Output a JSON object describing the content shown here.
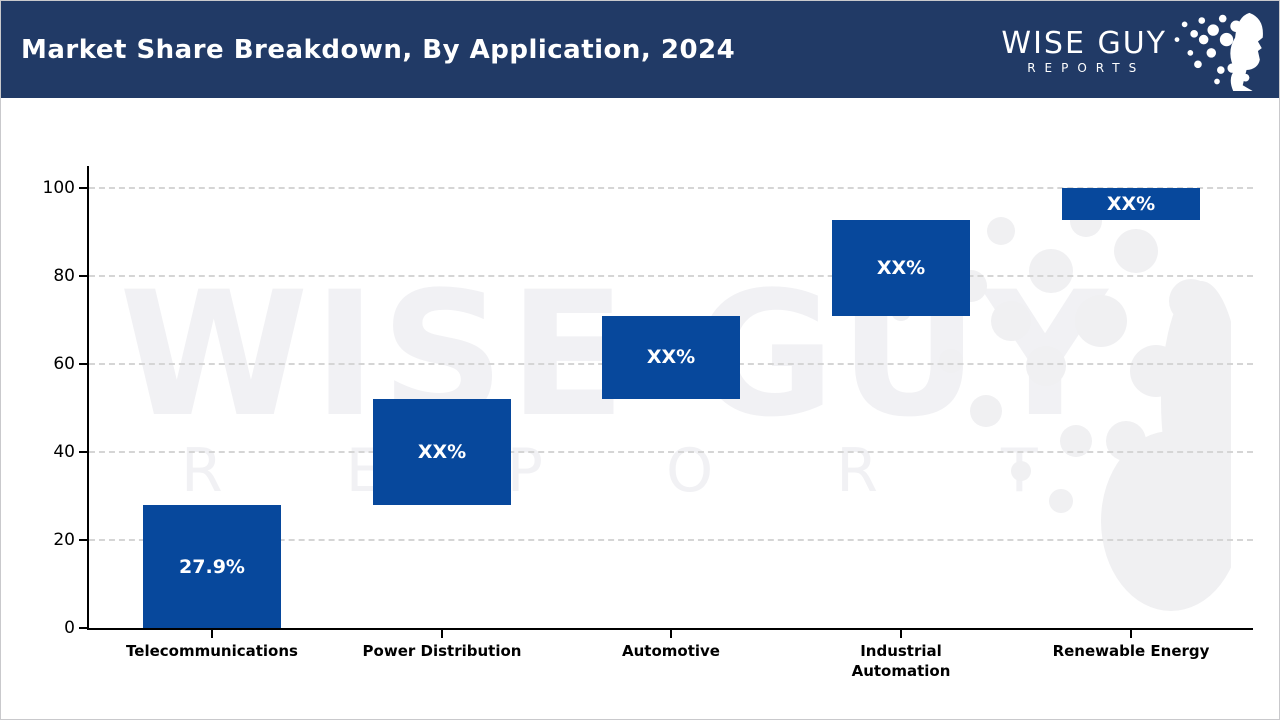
{
  "header": {
    "title": "Market Share Breakdown, By Application, 2024",
    "logo": {
      "name_line": "WISE GUY",
      "sub_line": "REPORTS"
    }
  },
  "watermark": {
    "line1": "WISE GUY",
    "line2": "R E P O R T S"
  },
  "colors": {
    "header_bg": "#213a66",
    "bar": "#07489c",
    "bar_label": "#ffffff",
    "grid": "#d5d5d5",
    "axis": "#000000",
    "watermark": "#f1f1f4"
  },
  "chart_data": {
    "type": "bar",
    "subtype": "waterfall",
    "title": "Market Share Breakdown, By Application, 2024",
    "categories": [
      "Telecommunications",
      "Power Distribution",
      "Automotive",
      "Industrial Automation",
      "Renewable Energy"
    ],
    "ylim": [
      0,
      105
    ],
    "yticks": [
      0,
      20,
      40,
      60,
      80,
      100
    ],
    "grid": "horizontal-dashed",
    "legend": "none",
    "bar_color": "#07489c",
    "segments": [
      {
        "category": "Telecommunications",
        "category_lines": [
          "Telecommunications"
        ],
        "start": 0,
        "end": 27.9,
        "value": 27.9,
        "value_label": "27.9%"
      },
      {
        "category": "Power Distribution",
        "category_lines": [
          "Power Distribution"
        ],
        "start": 27.9,
        "end": 52.0,
        "value": 24.1,
        "value_label": "XX%"
      },
      {
        "category": "Automotive",
        "category_lines": [
          "Automotive"
        ],
        "start": 52.0,
        "end": 71.0,
        "value": 19.0,
        "value_label": "XX%"
      },
      {
        "category": "Industrial Automation",
        "category_lines": [
          "Industrial",
          "Automation"
        ],
        "start": 71.0,
        "end": 92.8,
        "value": 21.8,
        "value_label": "XX%"
      },
      {
        "category": "Renewable Energy",
        "category_lines": [
          "Renewable Energy"
        ],
        "start": 92.8,
        "end": 100.0,
        "value": 7.2,
        "value_label": "XX%"
      }
    ]
  }
}
